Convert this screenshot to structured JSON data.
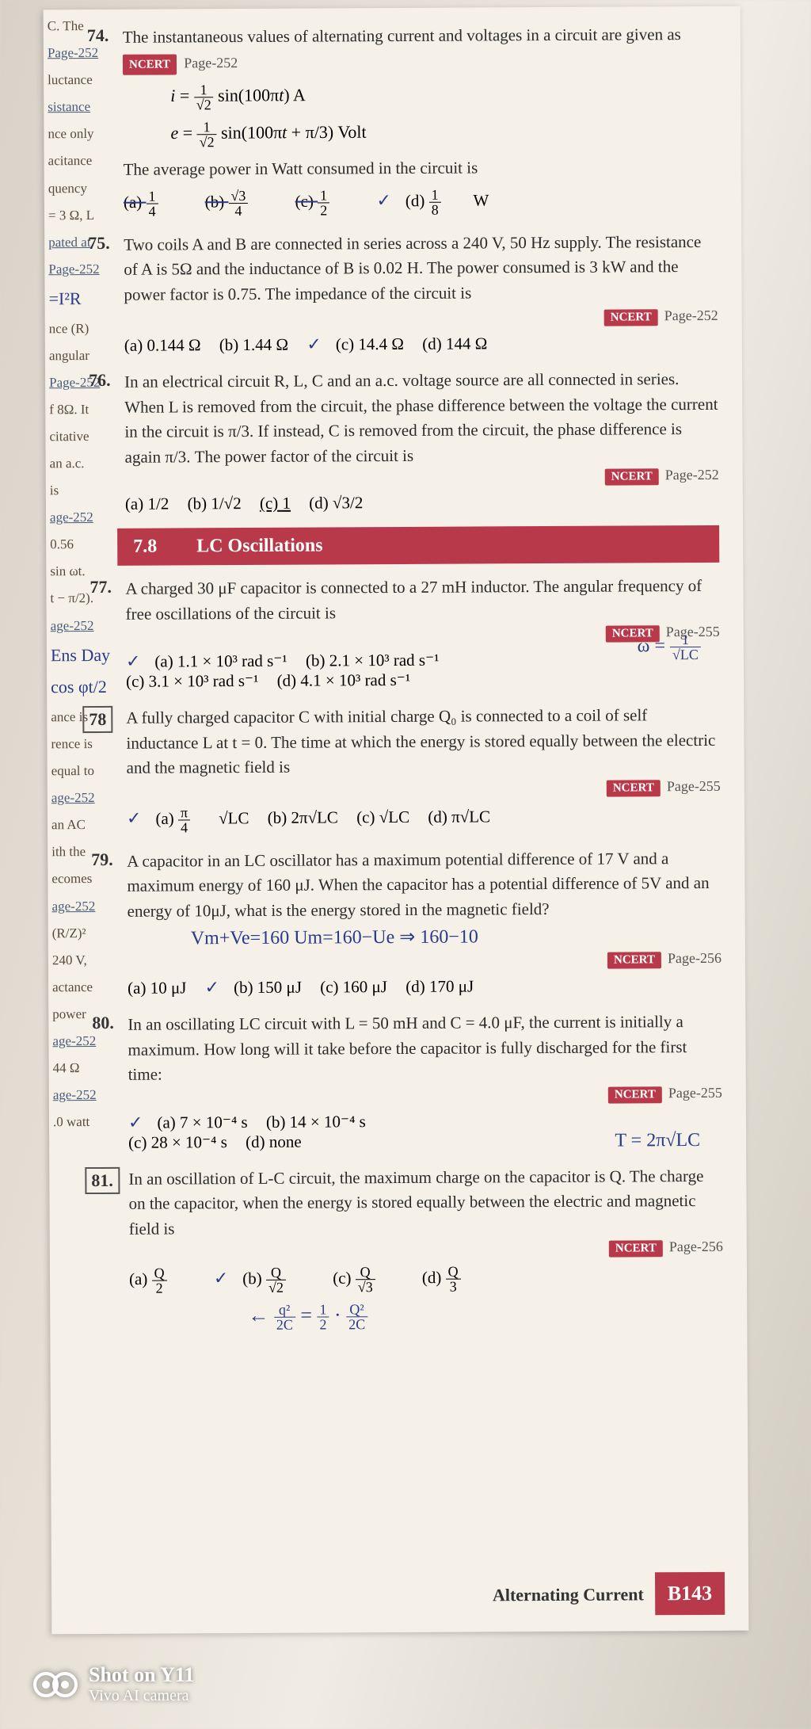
{
  "margin": {
    "items": [
      {
        "text": "C. The"
      },
      {
        "text": "Page-252",
        "link": true
      },
      {
        "text": "luctance"
      },
      {
        "text": "sistance",
        "link": true
      },
      {
        "text": "nce only"
      },
      {
        "text": "acitance"
      },
      {
        "text": "quency"
      },
      {
        "text": "= 3 Ω, L"
      },
      {
        "text": "pated at",
        "link": true
      },
      {
        "text": "Page-252",
        "link": true
      },
      {
        "text": "=I²R",
        "hand": true
      },
      {
        "text": "nce (R)"
      },
      {
        "text": "angular"
      },
      {
        "text": "Page-252",
        "link": true
      },
      {
        "text": "f 8Ω. It"
      },
      {
        "text": "citative"
      },
      {
        "text": "an a.c."
      },
      {
        "text": "is"
      },
      {
        "text": "age-252",
        "link": true
      },
      {
        "text": "0.56"
      },
      {
        "text": "sin ωt."
      },
      {
        "text": "t − π/2)."
      },
      {
        "text": "age-252",
        "link": true
      },
      {
        "text": "Ens Day",
        "hand": true
      },
      {
        "text": "cos φt/2",
        "hand": true
      },
      {
        "text": "ance is"
      },
      {
        "text": "rence is"
      },
      {
        "text": "equal to"
      },
      {
        "text": "age-252",
        "link": true
      },
      {
        "text": "an AC"
      },
      {
        "text": "ith the"
      },
      {
        "text": "ecomes"
      },
      {
        "text": "age-252",
        "link": true
      },
      {
        "text": "(R/Z)²"
      },
      {
        "text": "240 V,"
      },
      {
        "text": "actance"
      },
      {
        "text": "power"
      },
      {
        "text": "age-252",
        "link": true
      },
      {
        "text": "44 Ω"
      },
      {
        "text": "age-252",
        "link": true
      },
      {
        "text": ".0 watt"
      }
    ]
  },
  "questions": [
    {
      "num": "74.",
      "text": "The instantaneous values of alternating current and voltages in a circuit are given as",
      "ncert": "NCERT",
      "pageRef": "Page-252",
      "math": [
        "i = (1/√2) sin(100πt) A",
        "e = (1/√2) sin(100πt + π/3) Volt"
      ],
      "text2": "The average power in Watt consumed in the circuit is",
      "opts": [
        "(a) 1/4",
        "(b) √3/4",
        "(c) 1/2",
        "(d) 1/8 W"
      ],
      "strike": [
        0,
        1,
        2
      ],
      "tick": 3
    },
    {
      "num": "75.",
      "text": "Two coils A and B are connected in series across a 240 V, 50 Hz supply. The resistance of A is 5Ω and the inductance of B is 0.02 H. The power consumed is 3 kW and the power factor is 0.75. The impedance of the circuit is",
      "ncert": "NCERT",
      "pageRef": "Page-252",
      "opts": [
        "(a) 0.144 Ω",
        "(b) 1.44 Ω",
        "(c) 14.4 Ω",
        "(d) 144 Ω"
      ],
      "tick": 2
    },
    {
      "num": "76.",
      "text": "In an electrical circuit R, L, C and an a.c. voltage source are all connected in series. When L is removed from the circuit, the phase difference between the voltage the current in the circuit is π/3. If instead, C is removed from the circuit, the phase difference is again π/3. The power factor of the circuit is",
      "ncert": "NCERT",
      "pageRef": "Page-252",
      "opts": [
        "(a) 1/2",
        "(b) 1/√2",
        "(c) 1",
        "(d) √3/2"
      ],
      "underline": 2
    }
  ],
  "section": {
    "num": "7.8",
    "title": "LC Oscillations"
  },
  "questions2": [
    {
      "num": "77.",
      "text": "A charged 30 μF capacitor is connected to a 27 mH inductor. The angular frequency of free oscillations of the circuit is",
      "ncert": "NCERT",
      "pageRef": "Page-255",
      "opts": [
        "(a) 1.1 × 10³ rad s⁻¹",
        "(b) 2.1 × 10³ rad s⁻¹",
        "(c) 3.1 × 10³ rad s⁻¹",
        "(d) 4.1 × 10³ rad s⁻¹"
      ],
      "tick": 0,
      "handNote": "ω = 1/√LC"
    },
    {
      "num": "78",
      "boxed": true,
      "text": "A fully charged capacitor C with initial charge Q₀ is connected to a coil of self inductance L at t = 0. The time at which the energy is stored equally between the electric and the magnetic field is",
      "ncert": "NCERT",
      "pageRef": "Page-255",
      "opts": [
        "(a) (π/4)√LC",
        "(b) 2π√LC",
        "(c) √LC",
        "(d) π√LC"
      ],
      "tick": 0
    },
    {
      "num": "79.",
      "text": "A capacitor in an LC oscillator has a maximum potential difference of 17 V and a maximum energy of 160 μJ. When the capacitor has a potential difference of 5V and an energy of 10μJ, what is the energy stored in the magnetic field?",
      "ncert": "NCERT",
      "pageRef": "Page-256",
      "opts": [
        "(a) 10 μJ",
        "(b) 150 μJ",
        "(c) 160 μJ",
        "(d) 170 μJ"
      ],
      "tick": 1,
      "handNote": "Vm+Ve=160  Um=160−Ue ⇒ 160−10"
    },
    {
      "num": "80.",
      "text": "In an oscillating LC circuit with L = 50 mH and C = 4.0 μF, the current is initially a maximum. How long will it take before the capacitor is fully discharged for the first time:",
      "ncert": "NCERT",
      "pageRef": "Page-255",
      "opts": [
        "(a) 7 × 10⁻⁴ s",
        "(b) 14 × 10⁻⁴ s",
        "(c) 28 × 10⁻⁴ s",
        "(d) none"
      ],
      "tick": 0,
      "handNote2": "T = 2π√LC"
    },
    {
      "num": "81.",
      "boxed": true,
      "text": "In an oscillation of L-C circuit, the maximum charge on the capacitor is Q. The charge on the capacitor, when the energy is stored equally between the electric and magnetic field is",
      "ncert": "NCERT",
      "pageRef": "Page-256",
      "opts": [
        "(a) Q/2",
        "(b) Q/√2",
        "(c) Q/√3",
        "(d) Q/3"
      ],
      "tick": 1,
      "handNote": "q²/2C = (1/2)(Q²/2C)"
    }
  ],
  "footer": {
    "label": "Alternating Current",
    "badge": "B143"
  },
  "camera": {
    "line1": "Shot on Y11",
    "line2": "Vivo AI camera"
  }
}
